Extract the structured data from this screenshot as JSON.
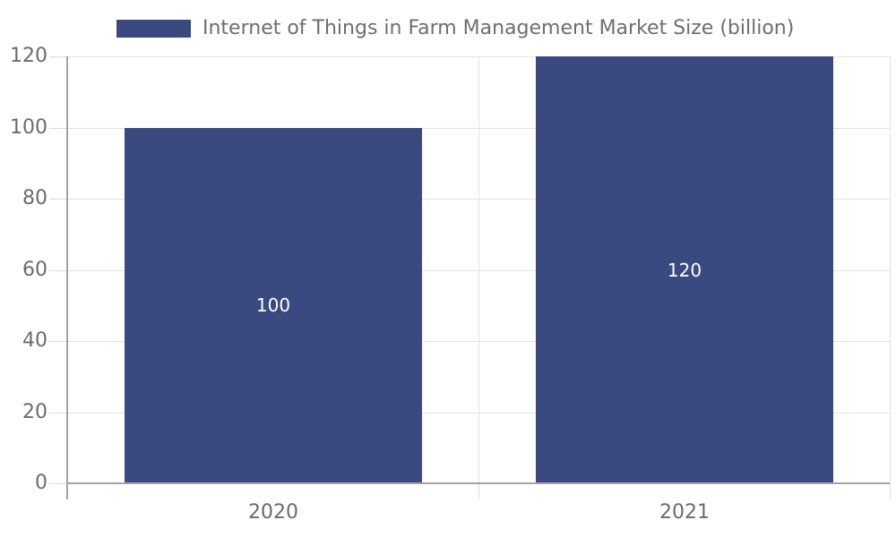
{
  "chart": {
    "legend": {
      "label": "Internet of Things in Farm Management Market Size (billion)"
    }
  },
  "chart_data": {
    "type": "bar",
    "title": "Internet of Things in Farm Management Market Size (billion)",
    "categories": [
      "2020",
      "2021"
    ],
    "values": [
      100,
      120
    ],
    "bar_labels": [
      "100",
      "120"
    ],
    "ytick_labels": [
      "0",
      "20",
      "40",
      "60",
      "80",
      "100",
      "120"
    ],
    "yticks": [
      0,
      20,
      40,
      60,
      80,
      100,
      120
    ],
    "ylim": [
      0,
      120
    ],
    "xlabel": "",
    "ylabel": "",
    "grid": true,
    "legend_position": "top-left",
    "colors": {
      "bar": "#3a4a80",
      "gridline": "#e2e2e2",
      "tick": "#dcdcdc",
      "axis_line": "#a3a3a3",
      "axis_label": "#6b6b6b",
      "bar_label": "#ffffff",
      "legend_text": "#6e6e6e",
      "background": "#ffffff"
    }
  }
}
